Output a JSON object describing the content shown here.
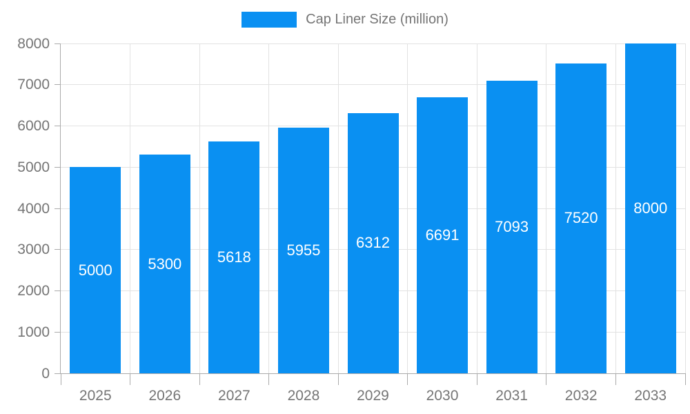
{
  "chart_data": {
    "type": "bar",
    "title": "",
    "legend": "Cap Liner Size (million)",
    "categories": [
      "2025",
      "2026",
      "2027",
      "2028",
      "2029",
      "2030",
      "2031",
      "2032",
      "2033"
    ],
    "values": [
      5000,
      5300,
      5618,
      5955,
      6312,
      6691,
      7093,
      7520,
      8000
    ],
    "series_name": "Cap Liner Size (million)",
    "xlabel": "",
    "ylabel": "",
    "ylim": [
      0,
      8000
    ],
    "ytick_step": 1000,
    "ytick_labels": [
      "0",
      "1000",
      "2000",
      "3000",
      "4000",
      "5000",
      "6000",
      "7000",
      "8000"
    ],
    "grid": true,
    "legend_position": "top",
    "bar_labels_inside": true,
    "colors": {
      "bar": "#0a90f2",
      "bar_label_text": "#ffffff",
      "axis_text": "#757575",
      "grid_line": "#e2e2e2",
      "axis_line": "#aaaaaa",
      "background": "#ffffff"
    }
  }
}
